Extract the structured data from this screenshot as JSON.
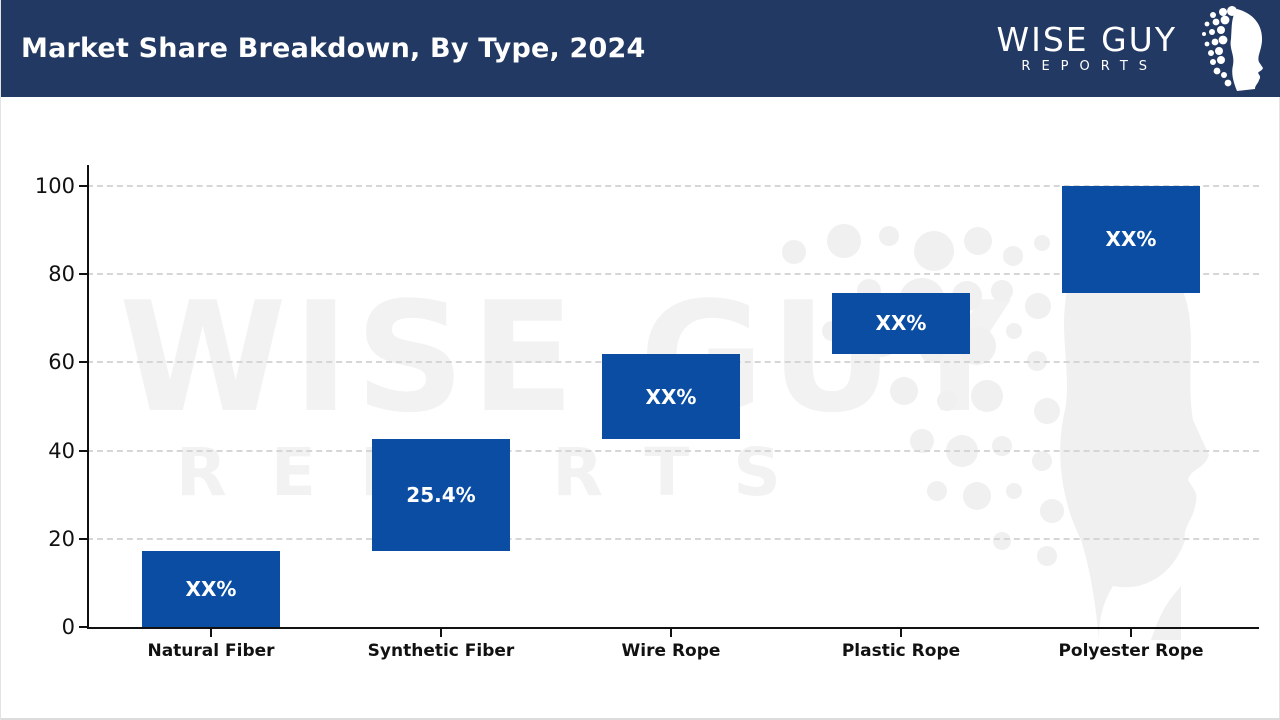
{
  "header": {
    "title": "Market Share Breakdown, By Type, 2024",
    "logo": {
      "primary": "WISE GUY",
      "secondary": "REPORTS"
    }
  },
  "watermark": {
    "primary": "WISE GUY",
    "secondary": "REPORTS"
  },
  "colors": {
    "header_bg": "#223963",
    "bar_fill": "#0b4da2",
    "bar_label_text": "#ffffff",
    "axis": "#111111",
    "gridline": "#d6d6d6",
    "watermark": "#f2f2f2",
    "background": "#ffffff"
  },
  "chart_data": {
    "type": "bar",
    "subtype": "waterfall-floating-bars",
    "title": "Market Share Breakdown, By Type, 2024",
    "categories": [
      "Natural Fiber",
      "Synthetic Fiber",
      "Wire Rope",
      "Plastic Rope",
      "Polyester Rope"
    ],
    "segments": [
      {
        "category": "Natural Fiber",
        "start": 0,
        "end": 17.2,
        "label": "XX%"
      },
      {
        "category": "Synthetic Fiber",
        "start": 17.2,
        "end": 42.6,
        "label": "25.4%"
      },
      {
        "category": "Wire Rope",
        "start": 42.6,
        "end": 61.9,
        "label": "XX%"
      },
      {
        "category": "Plastic Rope",
        "start": 61.9,
        "end": 75.8,
        "label": "XX%"
      },
      {
        "category": "Polyester Rope",
        "start": 75.8,
        "end": 100,
        "label": "XX%"
      }
    ],
    "yticks": [
      0,
      20,
      40,
      60,
      80,
      100
    ],
    "ylim": [
      0,
      100
    ],
    "xlabel": "",
    "ylabel": "",
    "grid": "dashed-horizontal-light-gray",
    "legend": "none"
  }
}
